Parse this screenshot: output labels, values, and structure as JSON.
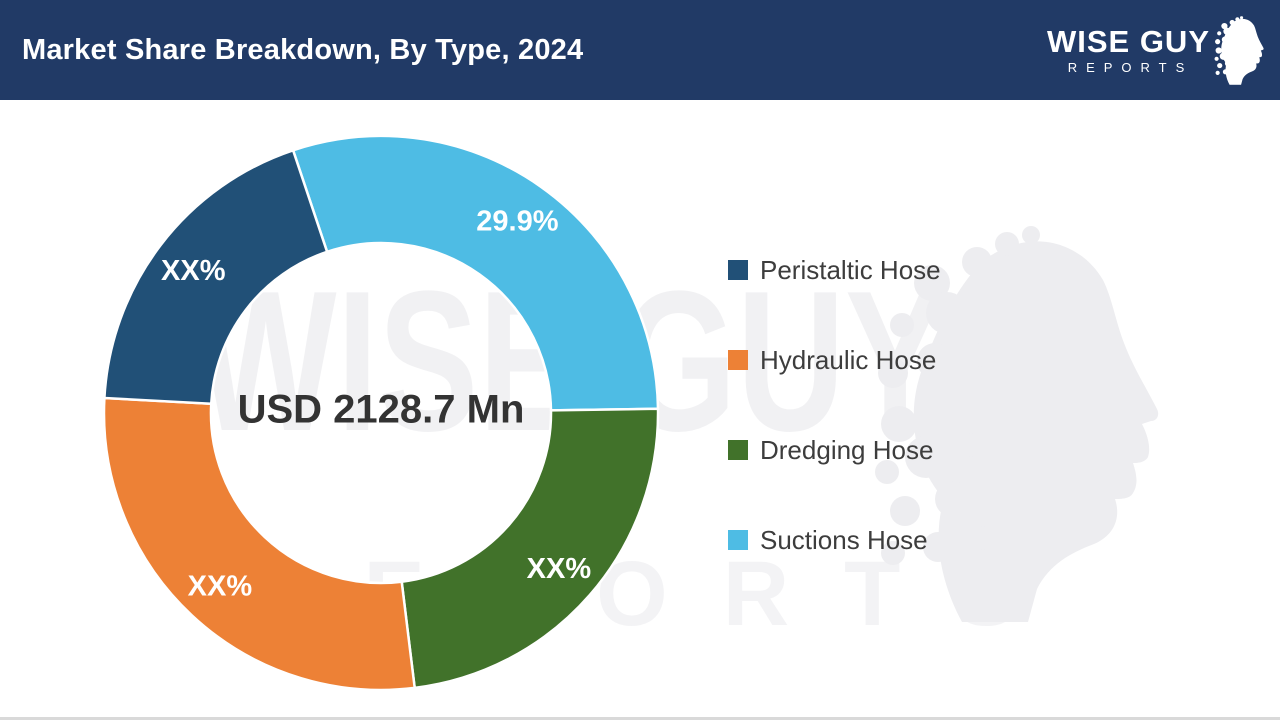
{
  "header": {
    "title": "Market Share Breakdown, By Type, 2024",
    "logo": {
      "primary": "WISE GUY",
      "secondary": "REPORTS"
    }
  },
  "watermark": {
    "primary": "WISE GUY",
    "secondary": "REPORTS"
  },
  "chart_data": {
    "type": "pie",
    "subtype": "donut",
    "title": "Market Share Breakdown, By Type, 2024",
    "center_label": "USD 2128.7 Mn",
    "start_angle_deg": -18.5,
    "legend_position": "right",
    "segments": [
      {
        "label": "Suctions Hose",
        "display_value": "29.9%",
        "value_pct": 29.9,
        "color": "#4EBCE4"
      },
      {
        "label": "Dredging Hose",
        "display_value": "XX%",
        "value_pct": 23.3,
        "color": "#41722A"
      },
      {
        "label": "Hydraulic Hose",
        "display_value": "XX%",
        "value_pct": 27.8,
        "color": "#ED8136"
      },
      {
        "label": "Peristaltic Hose",
        "display_value": "XX%",
        "value_pct": 19.0,
        "color": "#215077"
      }
    ],
    "legend": [
      {
        "label": "Peristaltic Hose",
        "color": "#215077"
      },
      {
        "label": "Hydraulic Hose",
        "color": "#ED8136"
      },
      {
        "label": "Dredging Hose",
        "color": "#41722A"
      },
      {
        "label": "Suctions Hose",
        "color": "#4EBCE4"
      }
    ]
  }
}
